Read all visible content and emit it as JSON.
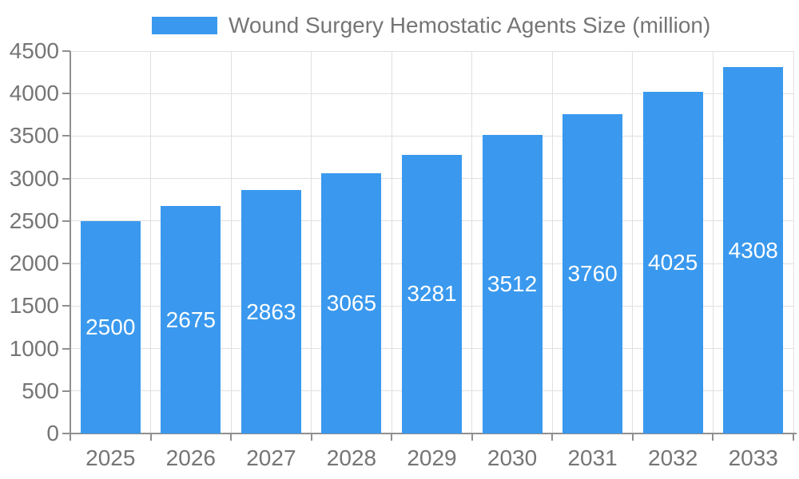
{
  "chart_data": {
    "type": "bar",
    "title": "",
    "legend_label": "Wound Surgery Hemostatic Agents Size (million)",
    "legend_position": "top",
    "categories": [
      "2025",
      "2026",
      "2027",
      "2028",
      "2029",
      "2030",
      "2031",
      "2032",
      "2033"
    ],
    "values": [
      2500,
      2675,
      2863,
      3065,
      3281,
      3512,
      3760,
      4025,
      4308
    ],
    "value_labels_inside_bars": true,
    "xlabel": "",
    "ylabel": "",
    "ylim": [
      0,
      4500
    ],
    "ytick_step": 500,
    "ytick_labels": [
      "0",
      "500",
      "1000",
      "1500",
      "2000",
      "2500",
      "3000",
      "3500",
      "4000",
      "4500"
    ],
    "grid": true,
    "colors": {
      "bar": "#3a99ee",
      "bar_value_text": "#ffffff",
      "axis_text": "#757575",
      "axis_line": "#8f8f8f",
      "grid_line": "#e0e0e0",
      "background": "#ffffff"
    }
  }
}
